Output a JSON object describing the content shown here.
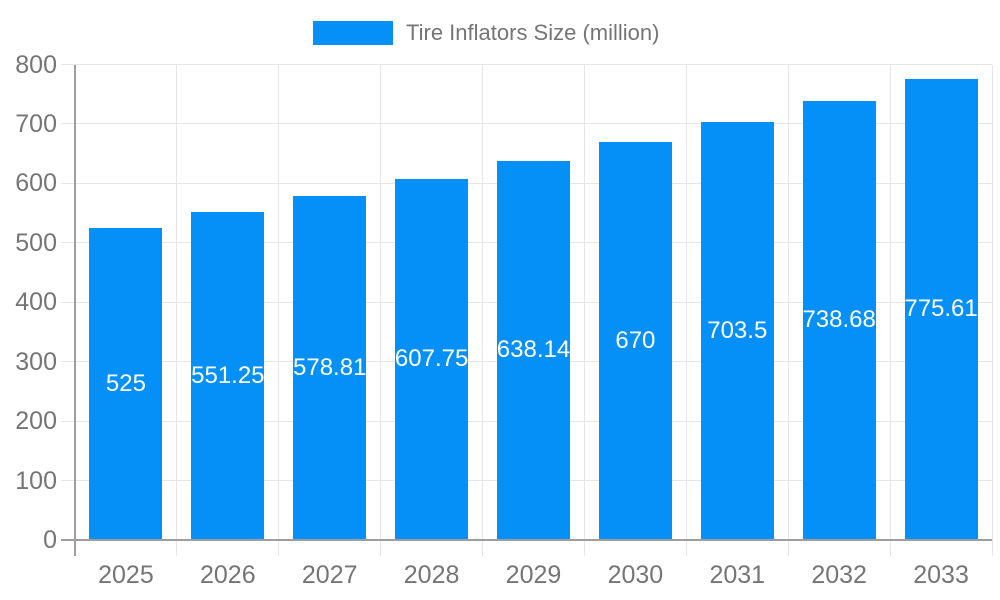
{
  "chart_data": {
    "type": "bar",
    "title": "Tire Inflators Size (million)",
    "categories": [
      "2025",
      "2026",
      "2027",
      "2028",
      "2029",
      "2030",
      "2031",
      "2032",
      "2033"
    ],
    "values": [
      525,
      551.25,
      578.81,
      607.75,
      638.14,
      670,
      703.5,
      738.68,
      775.61
    ],
    "value_labels": [
      "525",
      "551.25",
      "578.81",
      "607.75",
      "638.14",
      "670",
      "703.5",
      "738.68",
      "775.61"
    ],
    "series_name": "Tire Inflators Size (million)",
    "xlabel": "",
    "ylabel": "",
    "ylim": [
      0,
      800
    ],
    "ytick_step": 100,
    "ytick_labels": [
      "0",
      "100",
      "200",
      "300",
      "400",
      "500",
      "600",
      "700",
      "800"
    ],
    "grid": true,
    "legend_position": "top-center",
    "colors": {
      "bar": "#0590f8",
      "axis_text": "#757575",
      "legend_text": "#757575",
      "gridline": "#e6e6e6",
      "axis_line": "#9e9e9e",
      "value_label": "#ffffff",
      "background": "#ffffff"
    }
  }
}
